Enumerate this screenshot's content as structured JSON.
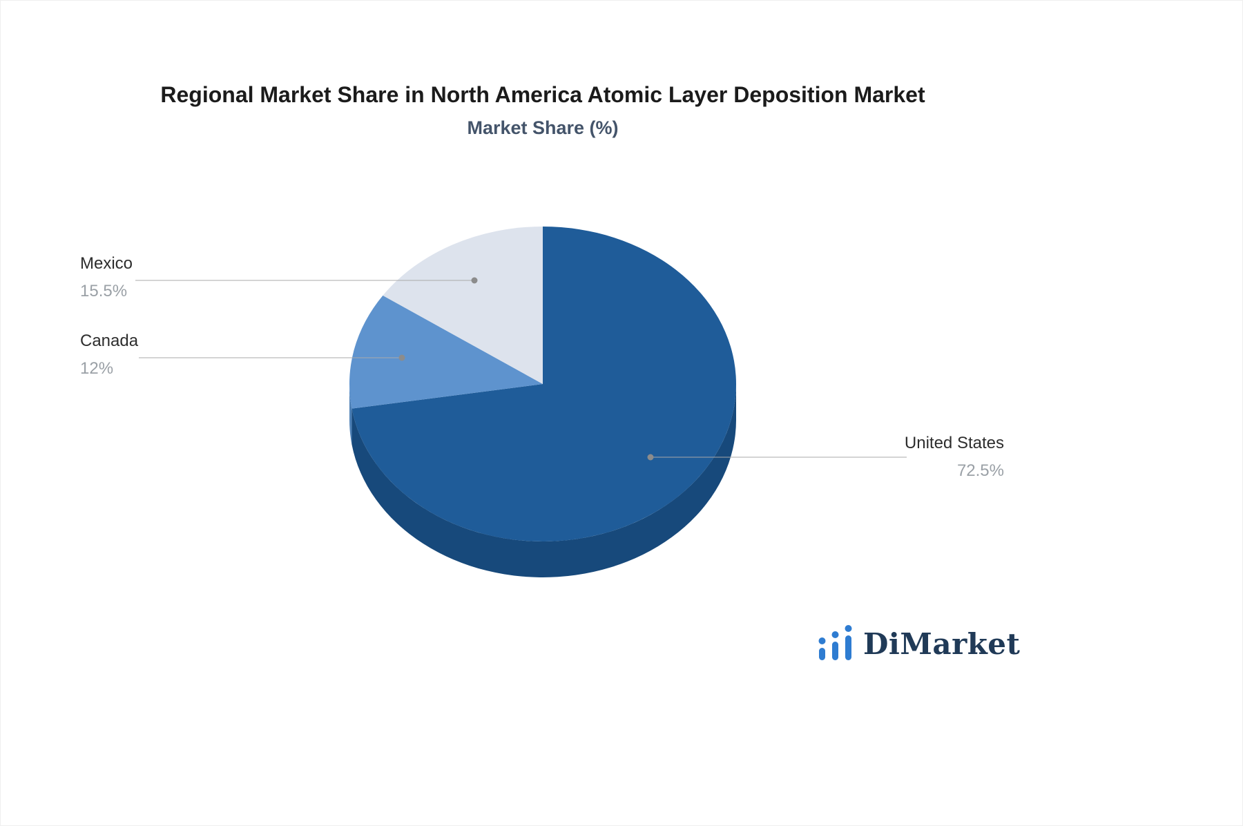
{
  "chart_data": {
    "type": "pie",
    "title": "Regional Market Share in North America Atomic Layer Deposition Market",
    "subtitle": "Market Share (%)",
    "unit": "%",
    "total": 100,
    "start_angle_deg": 0,
    "direction": "clockwise",
    "effect": "3d-depth",
    "slices": [
      {
        "label": "United States",
        "value": 72.5,
        "display": "72.5%",
        "color": "#1f5c99",
        "side_color": "#17497b"
      },
      {
        "label": "Canada",
        "value": 12,
        "display": "12%",
        "color": "#5e93ce",
        "side_color": "#4c7fb5"
      },
      {
        "label": "Mexico",
        "value": 15.5,
        "display": "15.5%",
        "color": "#dde3ed",
        "side_color": "#b9c4d6"
      }
    ],
    "legend_position": "none",
    "labels_style": "callout-lines",
    "callout_line_color": "#a9a9a9",
    "callout_dot_color": "#8c8c8c"
  },
  "brand": {
    "name": "DiMarket",
    "accent_color": "#2e7cd1",
    "text_color": "#203a57"
  }
}
